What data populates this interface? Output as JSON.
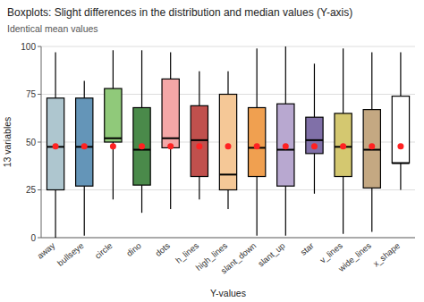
{
  "chart_data": {
    "type": "box",
    "title": "Boxplots: Slight differences in the distribution and median values (Y-axis)",
    "subtitle": "Identical mean values",
    "x_label": "Y-values",
    "y_label": "13 variables",
    "categories": [
      "away",
      "bullseye",
      "circle",
      "dino",
      "dots",
      "h_lines",
      "high_lines",
      "slant_down",
      "slant_up",
      "star",
      "v_lines",
      "wide_lines",
      "x_shape"
    ],
    "ylim": [
      0,
      100
    ],
    "yticks": [
      0,
      25,
      50,
      75,
      100
    ],
    "grid": true,
    "series": [
      {
        "type": "box",
        "colors": [
          "#aec6cf",
          "#6495b8",
          "#90c97a",
          "#4a8a4a",
          "#f4a7a7",
          "#c0504d",
          "#f5c897",
          "#f0a050",
          "#b8a8d0",
          "#8070a8",
          "#d4c870",
          "#c4a882",
          "#ffffff"
        ],
        "whislo": [
          0.0,
          1.0,
          20.0,
          13.0,
          15.0,
          20.0,
          15.0,
          1.0,
          1.0,
          23.0,
          2.0,
          3.0,
          25.0
        ],
        "q1": [
          25.0,
          27.0,
          50.0,
          27.5,
          47.0,
          32.0,
          25.0,
          32.0,
          27.0,
          44.0,
          32.0,
          26.0,
          39.0
        ],
        "median": [
          47.5,
          47.5,
          52.0,
          46.0,
          52.0,
          51.0,
          33.0,
          47.0,
          46.0,
          51.0,
          47.5,
          46.0,
          39.0
        ],
        "q3": [
          73.0,
          73.0,
          78.0,
          68.0,
          83.0,
          69.0,
          75.0,
          68.0,
          70.0,
          63.0,
          65.0,
          67.0,
          74.0
        ],
        "whishi": [
          97.0,
          82.0,
          98.0,
          98.0,
          97.0,
          87.0,
          87.0,
          99.0,
          100.0,
          91.0,
          99.0,
          97.0,
          97.0
        ]
      },
      {
        "type": "scatter",
        "color": "#ff2222",
        "values": [
          47.8,
          47.8,
          47.8,
          47.8,
          47.8,
          47.8,
          47.8,
          47.8,
          47.8,
          47.8,
          47.8,
          47.8,
          47.8
        ]
      }
    ]
  }
}
